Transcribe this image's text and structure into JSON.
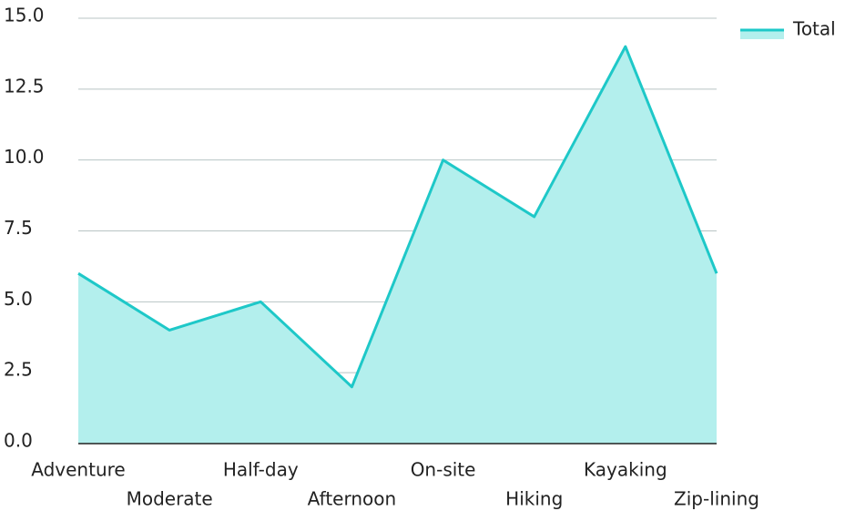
{
  "chart_data": {
    "type": "area",
    "categories": [
      "Adventure",
      "Moderate",
      "Half-day",
      "Afternoon",
      "On-site",
      "Hiking",
      "Kayaking",
      "Zip-lining"
    ],
    "series": [
      {
        "name": "Total",
        "color": "#1ec8c8",
        "fill": "#b3efed",
        "values": [
          6,
          4,
          5,
          2,
          10,
          8,
          14,
          6
        ]
      }
    ],
    "ylim": [
      0,
      15
    ],
    "yticks": [
      {
        "value": 0,
        "label": "0.0"
      },
      2.5,
      {
        "value": 5,
        "label": "5.0"
      },
      7.5,
      {
        "value": 10,
        "label": "10.0"
      },
      12.5,
      {
        "value": 15,
        "label": "15.0"
      }
    ],
    "grid": true,
    "legend": "top-right"
  }
}
